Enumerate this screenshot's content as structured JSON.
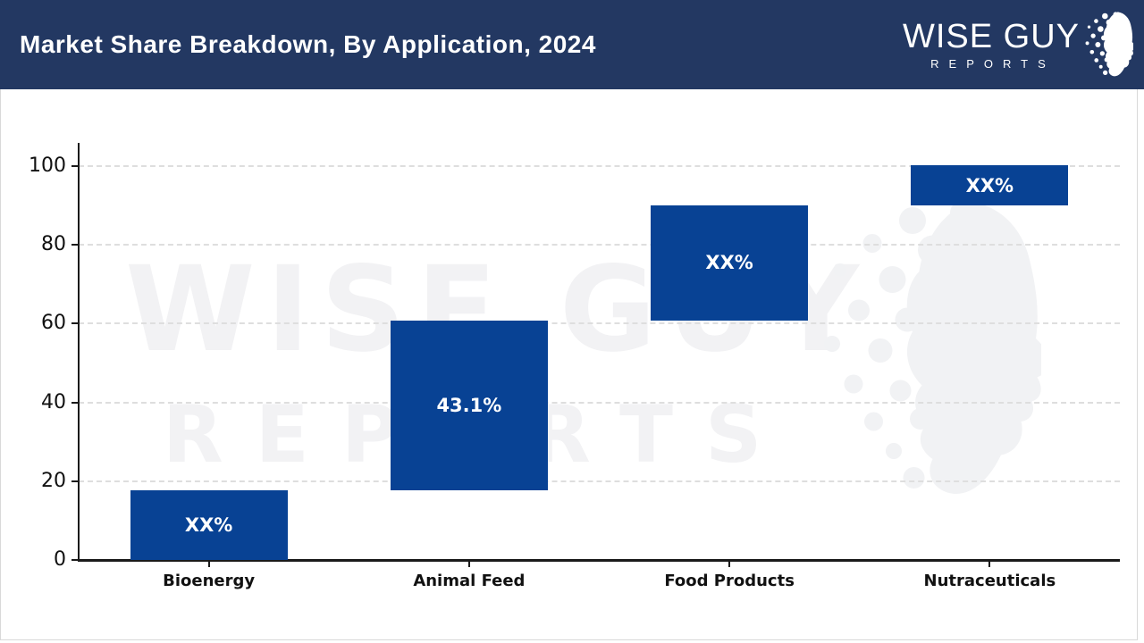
{
  "header": {
    "title": "Market Share Breakdown, By Application, 2024",
    "logo": {
      "line1": "WISE GUY",
      "line2": "REPORTS"
    }
  },
  "watermark": {
    "line1": "WISE GUY",
    "line2": "REPORTS"
  },
  "chart_data": {
    "type": "bar",
    "variant": "waterfall-stacked-percentage",
    "title": "Market Share Breakdown, By Application, 2024",
    "categories": [
      "Bioenergy",
      "Animal Feed",
      "Food Products",
      "Nutraceuticals"
    ],
    "segments": [
      {
        "category": "Bioenergy",
        "start": 0,
        "end": 17.6,
        "value": null,
        "label": "XX%"
      },
      {
        "category": "Animal Feed",
        "start": 17.6,
        "end": 60.8,
        "value": 43.1,
        "label": "43.1%"
      },
      {
        "category": "Food Products",
        "start": 60.8,
        "end": 90.0,
        "value": null,
        "label": "XX%"
      },
      {
        "category": "Nutraceuticals",
        "start": 90.0,
        "end": 100.2,
        "value": null,
        "label": "XX%"
      }
    ],
    "yticks": [
      0,
      20,
      40,
      60,
      80,
      100
    ],
    "ylim": [
      0,
      105
    ],
    "xlabel": "",
    "ylabel": "",
    "grid": "horizontal-dashed",
    "legend": "none",
    "bar_color": "#084294",
    "label_color": "#ffffff"
  },
  "colors": {
    "header_bg": "#233862",
    "header_text": "#ffffff",
    "bar": "#084294",
    "gridline": "#dedede",
    "axis": "#1a1a1a",
    "watermark": "#f2f2f4",
    "frame_border": "#d9d9d9"
  }
}
